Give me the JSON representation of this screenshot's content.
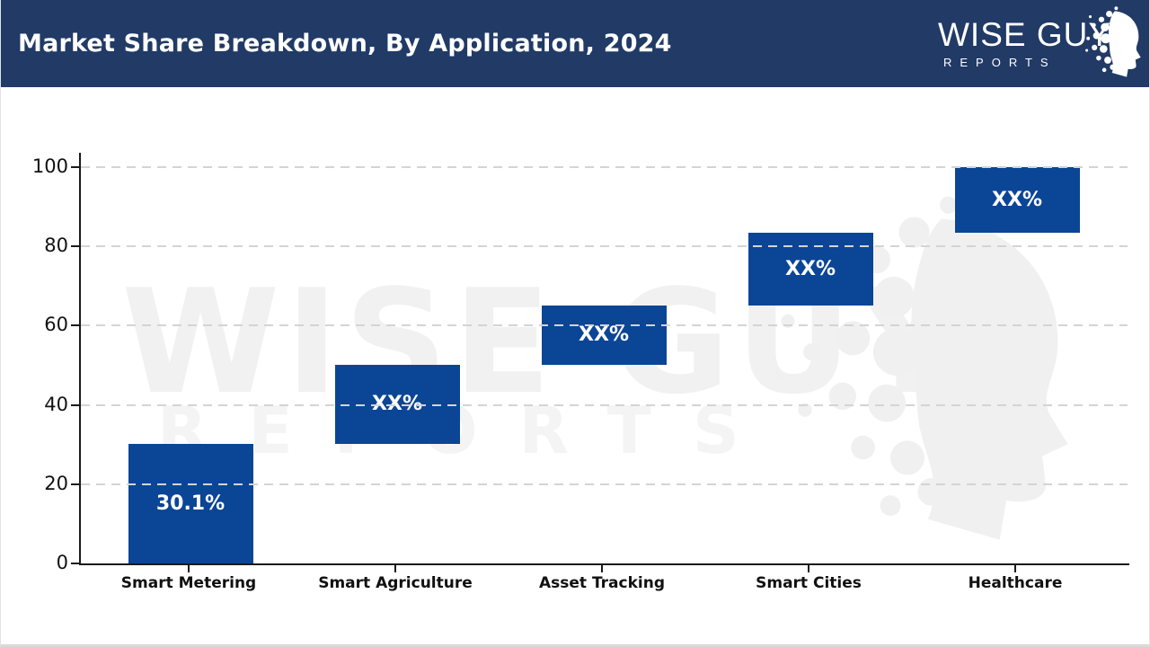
{
  "header": {
    "title": "Market Share Breakdown, By Application, 2024",
    "bg_color": "#213a66",
    "logo": {
      "line1": "WISE GUY",
      "line2": "REPORTS"
    }
  },
  "watermark": {
    "line1": "WISE GUY",
    "line2": "REPORTS"
  },
  "chart_data": {
    "type": "bar",
    "variant": "floating-waterfall",
    "title": "Market Share Breakdown, By Application, 2024",
    "categories": [
      "Smart Metering",
      "Smart Agriculture",
      "Asset Tracking",
      "Smart Cities",
      "Healthcare"
    ],
    "segments": [
      {
        "category": "Smart Metering",
        "start": 0,
        "end": 30.1,
        "label": "30.1%"
      },
      {
        "category": "Smart Agriculture",
        "start": 30.1,
        "end": 50.2,
        "label": "XX%"
      },
      {
        "category": "Asset Tracking",
        "start": 50.2,
        "end": 65.1,
        "label": "XX%"
      },
      {
        "category": "Smart Cities",
        "start": 65.1,
        "end": 83.4,
        "label": "XX%"
      },
      {
        "category": "Healthcare",
        "start": 83.4,
        "end": 100,
        "label": "XX%"
      }
    ],
    "xlabel": "",
    "ylabel": "",
    "ylim": [
      0,
      100
    ],
    "yticks": [
      0,
      20,
      40,
      60,
      80,
      100
    ],
    "grid": "horizontal dashed, drawn over bars",
    "legend": "none",
    "bar_color": "#0b4596",
    "bar_label_color": "#ffffff",
    "axis_color": "#1a1a1a",
    "gridline_color": "#d4d4d4"
  }
}
